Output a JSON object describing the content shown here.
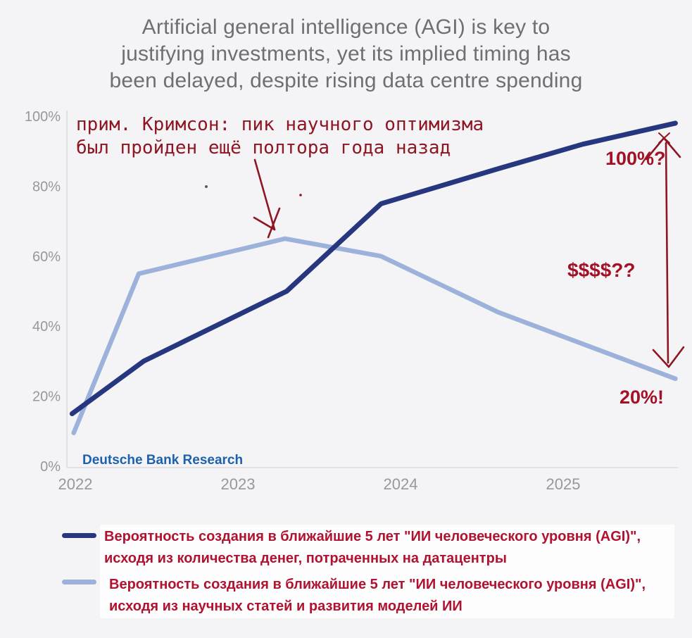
{
  "title": {
    "lines": [
      "Artificial general intelligence (AGI) is key to",
      "justifying investments, yet its implied timing has",
      "been delayed, despite rising data centre spending"
    ]
  },
  "annotations": {
    "note_line1": "прим. Кримсон: пик научного оптимизма",
    "note_line2": "был пройден ещё полтора года назад",
    "top_label": "100%?",
    "money_label": "$$$$??",
    "bottom_label": "20%!"
  },
  "source": "Deutsche Bank Research",
  "colors": {
    "dark_series": "#26377f",
    "light_series": "#9cb2da",
    "annotation_red": "#8e1522",
    "legend_text_red": "#b11230",
    "source_blue": "#1d61ac",
    "title_gray": "#6f6f72",
    "axis_gray": "#98989a",
    "background": "#f4f4f6",
    "legend_background": "#fdfdfe"
  },
  "chart_data": {
    "type": "line",
    "title": "Artificial general intelligence (AGI) is key to justifying investments, yet its implied timing has been delayed, despite rising data centre spending",
    "xlabel": "",
    "ylabel": "",
    "xlim": [
      2021.95,
      2025.75
    ],
    "ylim": [
      0,
      100
    ],
    "grid": false,
    "legend_position": "bottom",
    "xticks": [
      {
        "v": 2022,
        "label": "2022"
      },
      {
        "v": 2023,
        "label": "2023"
      },
      {
        "v": 2024,
        "label": "2024"
      },
      {
        "v": 2025,
        "label": "2025"
      }
    ],
    "yticks": [
      {
        "v": 0,
        "label": "0%"
      },
      {
        "v": 20,
        "label": "20%"
      },
      {
        "v": 40,
        "label": "40%"
      },
      {
        "v": 60,
        "label": "60%"
      },
      {
        "v": 80,
        "label": "80%"
      },
      {
        "v": 100,
        "label": "100%"
      }
    ],
    "series": [
      {
        "name": "Вероятность создания в ближайшие 5 лет \"ИИ человеческого уровня (AGI)\", исходя из количества денег, потраченных на датацентры",
        "color": "#26377f",
        "points": [
          [
            2021.98,
            15
          ],
          [
            2022.42,
            30
          ],
          [
            2023.3,
            50
          ],
          [
            2023.88,
            75
          ],
          [
            2024.6,
            85
          ],
          [
            2025.12,
            92
          ],
          [
            2025.69,
            98
          ]
        ]
      },
      {
        "name": "Вероятность создания в ближайшие 5 лет \"ИИ человеческого уровня (AGI)\", исходя из научных статей и развития моделей ИИ",
        "color": "#9cb2da",
        "points": [
          [
            2021.99,
            9.5
          ],
          [
            2022.39,
            55
          ],
          [
            2023.29,
            65
          ],
          [
            2023.88,
            60
          ],
          [
            2024.6,
            44
          ],
          [
            2025.69,
            25
          ]
        ]
      }
    ]
  },
  "legend": {
    "items": [
      {
        "line1": "Вероятность создания в ближайшие 5 лет \"ИИ человеческого уровня (AGI)\",",
        "line2": "исходя из количества денег, потраченных на датацентры"
      },
      {
        "line1": "Вероятность создания в ближайшие 5 лет \"ИИ человеческого уровня (AGI)\",",
        "line2": "исходя из научных статей и развития моделей ИИ"
      }
    ]
  }
}
